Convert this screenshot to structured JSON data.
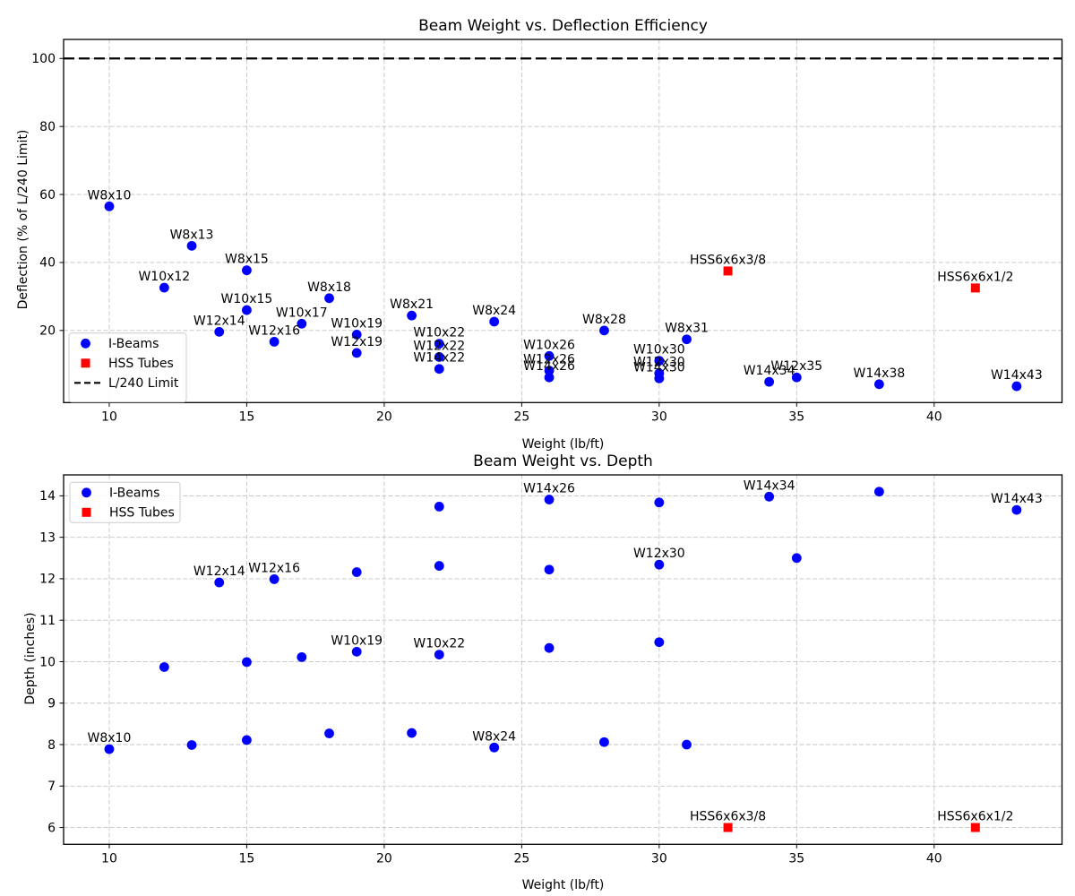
{
  "figure": {
    "background": "#ffffff",
    "ibeam_color": "#0000ff",
    "hss_color": "#ff0000",
    "limit_line_color": "#000000",
    "grid_color": "#c3c3c3",
    "spine_color": "#000000",
    "text_color": "#000000",
    "legend_border_color": "#cccccc",
    "legend_background": "rgba(255,255,255,0.85)"
  },
  "chart_data": [
    {
      "type": "scatter",
      "title": "Beam Weight vs. Deflection Efficiency",
      "xlabel": "Weight (lb/ft)",
      "ylabel": "Deflection (% of L/240 Limit)",
      "xlim": [
        8.34,
        44.65
      ],
      "ylim": [
        -1.2,
        105.6
      ],
      "xticks": [
        10,
        15,
        20,
        25,
        30,
        35,
        40
      ],
      "yticks": [
        20,
        40,
        60,
        80,
        100
      ],
      "grid": true,
      "hline": {
        "y": 100,
        "style": "dashed",
        "color": "#000000",
        "label": "L/240 Limit"
      },
      "legend": {
        "position": "lower-left",
        "entries": [
          {
            "label": "I-Beams",
            "marker": "circle",
            "color": "#0000ff"
          },
          {
            "label": "HSS Tubes",
            "marker": "square",
            "color": "#ff0000"
          },
          {
            "label": "L/240 Limit",
            "marker": "dashed-line",
            "color": "#000000"
          }
        ]
      },
      "series": [
        {
          "name": "I-Beams",
          "marker": "circle",
          "color": "#0000ff",
          "points": [
            {
              "label": "W8x10",
              "x": 10,
              "y": 56.5,
              "annotate": true
            },
            {
              "label": "W10x12",
              "x": 12,
              "y": 32.6,
              "annotate": true
            },
            {
              "label": "W8x13",
              "x": 13,
              "y": 44.9,
              "annotate": true
            },
            {
              "label": "W12x14",
              "x": 14,
              "y": 19.6,
              "annotate": true
            },
            {
              "label": "W8x15",
              "x": 15,
              "y": 37.7,
              "annotate": true
            },
            {
              "label": "W10x15",
              "x": 15,
              "y": 26.0,
              "annotate": true
            },
            {
              "label": "W12x16",
              "x": 16,
              "y": 16.7,
              "annotate": true
            },
            {
              "label": "W10x17",
              "x": 17,
              "y": 22.0,
              "annotate": true
            },
            {
              "label": "W8x18",
              "x": 18,
              "y": 29.5,
              "annotate": true
            },
            {
              "label": "W10x19",
              "x": 19,
              "y": 18.8,
              "annotate": true
            },
            {
              "label": "W12x19",
              "x": 19,
              "y": 13.4,
              "annotate": true
            },
            {
              "label": "W8x21",
              "x": 21,
              "y": 24.4,
              "annotate": true
            },
            {
              "label": "W10x22",
              "x": 22,
              "y": 16.1,
              "annotate": true
            },
            {
              "label": "W12x22",
              "x": 22,
              "y": 12.2,
              "annotate": true
            },
            {
              "label": "W14x22",
              "x": 22,
              "y": 8.7,
              "annotate": true
            },
            {
              "label": "W8x24",
              "x": 24,
              "y": 22.6,
              "annotate": true
            },
            {
              "label": "W10x26",
              "x": 26,
              "y": 12.5,
              "annotate": true
            },
            {
              "label": "W12x26",
              "x": 26,
              "y": 8.2,
              "annotate": true
            },
            {
              "label": "W14x26",
              "x": 26,
              "y": 6.2,
              "annotate": true
            },
            {
              "label": "W8x28",
              "x": 28,
              "y": 20.0,
              "annotate": true
            },
            {
              "label": "W10x30",
              "x": 30,
              "y": 11.1,
              "annotate": true
            },
            {
              "label": "W12x30",
              "x": 30,
              "y": 7.4,
              "annotate": true
            },
            {
              "label": "W14x30",
              "x": 30,
              "y": 5.9,
              "annotate": true
            },
            {
              "label": "W8x31",
              "x": 31,
              "y": 17.4,
              "annotate": true
            },
            {
              "label": "W14x34",
              "x": 34,
              "y": 4.9,
              "annotate": true
            },
            {
              "label": "W12x35",
              "x": 35,
              "y": 6.2,
              "annotate": true
            },
            {
              "label": "W14x38",
              "x": 38,
              "y": 4.2,
              "annotate": true
            },
            {
              "label": "W14x43",
              "x": 43,
              "y": 3.6,
              "annotate": true
            }
          ]
        },
        {
          "name": "HSS Tubes",
          "marker": "square",
          "color": "#ff0000",
          "points": [
            {
              "label": "HSS6x6x3/8",
              "x": 32.5,
              "y": 37.5,
              "annotate": true
            },
            {
              "label": "HSS6x6x1/2",
              "x": 41.5,
              "y": 32.5,
              "annotate": true
            }
          ]
        }
      ]
    },
    {
      "type": "scatter",
      "title": "Beam Weight vs. Depth",
      "xlabel": "Weight (lb/ft)",
      "ylabel": "Depth (inches)",
      "xlim": [
        8.34,
        44.65
      ],
      "ylim": [
        5.595,
        14.505
      ],
      "xticks": [
        10,
        15,
        20,
        25,
        30,
        35,
        40
      ],
      "yticks": [
        6,
        7,
        8,
        9,
        10,
        11,
        12,
        13,
        14
      ],
      "grid": true,
      "hline": null,
      "legend": {
        "position": "upper-left",
        "entries": [
          {
            "label": "I-Beams",
            "marker": "circle",
            "color": "#0000ff"
          },
          {
            "label": "HSS Tubes",
            "marker": "square",
            "color": "#ff0000"
          }
        ]
      },
      "series": [
        {
          "name": "I-Beams",
          "marker": "circle",
          "color": "#0000ff",
          "points": [
            {
              "label": "W8x10",
              "x": 10,
              "y": 7.89,
              "annotate": true
            },
            {
              "label": "W10x12",
              "x": 12,
              "y": 9.87,
              "annotate": false
            },
            {
              "label": "W8x13",
              "x": 13,
              "y": 7.99,
              "annotate": false
            },
            {
              "label": "W12x14",
              "x": 14,
              "y": 11.91,
              "annotate": true
            },
            {
              "label": "W8x15",
              "x": 15,
              "y": 8.11,
              "annotate": false
            },
            {
              "label": "W10x15",
              "x": 15,
              "y": 9.99,
              "annotate": false
            },
            {
              "label": "W12x16",
              "x": 16,
              "y": 11.99,
              "annotate": true
            },
            {
              "label": "W10x17",
              "x": 17,
              "y": 10.11,
              "annotate": false
            },
            {
              "label": "W8x18",
              "x": 18,
              "y": 8.27,
              "annotate": false
            },
            {
              "label": "W10x19",
              "x": 19,
              "y": 10.24,
              "annotate": true
            },
            {
              "label": "W12x19",
              "x": 19,
              "y": 12.16,
              "annotate": false
            },
            {
              "label": "W8x21",
              "x": 21,
              "y": 8.28,
              "annotate": false
            },
            {
              "label": "W10x22",
              "x": 22,
              "y": 10.17,
              "annotate": true
            },
            {
              "label": "W12x22",
              "x": 22,
              "y": 12.31,
              "annotate": false
            },
            {
              "label": "W14x22",
              "x": 22,
              "y": 13.74,
              "annotate": false
            },
            {
              "label": "W8x24",
              "x": 24,
              "y": 7.93,
              "annotate": true
            },
            {
              "label": "W10x26",
              "x": 26,
              "y": 10.33,
              "annotate": false
            },
            {
              "label": "W12x26",
              "x": 26,
              "y": 12.22,
              "annotate": false
            },
            {
              "label": "W14x26",
              "x": 26,
              "y": 13.91,
              "annotate": true
            },
            {
              "label": "W8x28",
              "x": 28,
              "y": 8.06,
              "annotate": false
            },
            {
              "label": "W10x30",
              "x": 30,
              "y": 10.47,
              "annotate": false
            },
            {
              "label": "W12x30",
              "x": 30,
              "y": 12.34,
              "annotate": true
            },
            {
              "label": "W14x30",
              "x": 30,
              "y": 13.84,
              "annotate": false
            },
            {
              "label": "W8x31",
              "x": 31,
              "y": 8.0,
              "annotate": false
            },
            {
              "label": "W14x34",
              "x": 34,
              "y": 13.98,
              "annotate": true
            },
            {
              "label": "W12x35",
              "x": 35,
              "y": 12.5,
              "annotate": false
            },
            {
              "label": "W14x38",
              "x": 38,
              "y": 14.1,
              "annotate": false
            },
            {
              "label": "W14x43",
              "x": 43,
              "y": 13.66,
              "annotate": true
            }
          ]
        },
        {
          "name": "HSS Tubes",
          "marker": "square",
          "color": "#ff0000",
          "points": [
            {
              "label": "HSS6x6x3/8",
              "x": 32.5,
              "y": 6.0,
              "annotate": true
            },
            {
              "label": "HSS6x6x1/2",
              "x": 41.5,
              "y": 6.0,
              "annotate": true
            }
          ]
        }
      ]
    }
  ]
}
